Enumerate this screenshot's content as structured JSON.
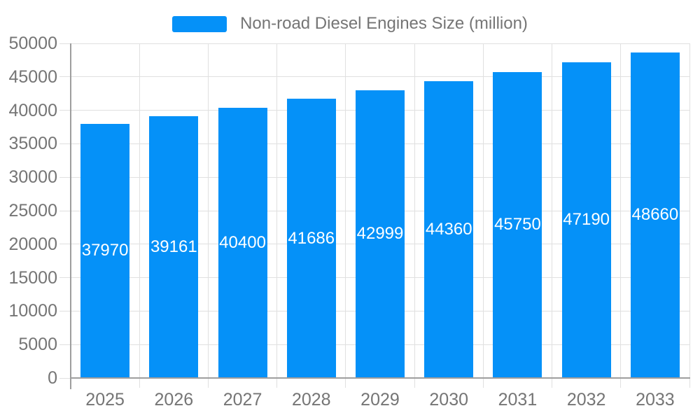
{
  "legend": {
    "items": [
      {
        "label": "Non-road Diesel Engines Size (million)",
        "color": "#0591F8"
      }
    ]
  },
  "colors": {
    "bar": "#0591F8",
    "axis": "#9E9E9E",
    "grid": "#E0E0E0",
    "text": "#757575",
    "value_text": "#FFFFFF",
    "background": "#FFFFFF"
  },
  "chart_data": {
    "type": "bar",
    "categories": [
      "2025",
      "2026",
      "2027",
      "2028",
      "2029",
      "2030",
      "2031",
      "2032",
      "2033"
    ],
    "values": [
      37970,
      39161,
      40400,
      41686,
      42999,
      44360,
      45750,
      47190,
      48660
    ],
    "title": "",
    "series_name": "Non-road Diesel Engines Size (million)",
    "xlabel": "",
    "ylabel": "",
    "ylim": [
      0,
      50000
    ],
    "ytick_step": 5000,
    "grid": true,
    "legend_position": "top",
    "value_label_position": "inside-center",
    "bar_color": "#0591F8"
  }
}
